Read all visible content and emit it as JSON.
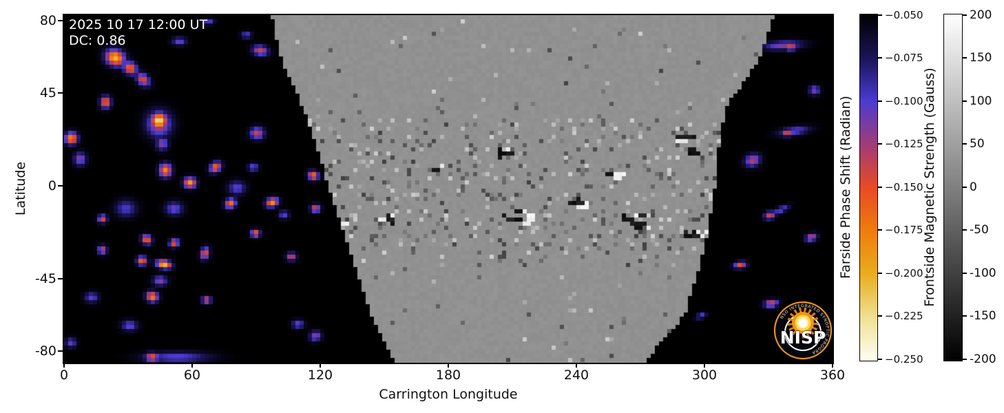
{
  "overlay": {
    "timestamp": "2025 10 17 12:00 UT",
    "dc_label": "DC: 0.86"
  },
  "axes": {
    "xlabel": "Carrington Longitude",
    "ylabel": "Latitude",
    "x_ticks": [
      0,
      60,
      120,
      180,
      240,
      300,
      360
    ],
    "y_ticks": [
      80,
      45,
      0,
      -45,
      -80
    ],
    "x_range": [
      0,
      360
    ],
    "y_range": [
      -84,
      84
    ]
  },
  "colorbars": [
    {
      "label": "Farside Phase Shift (Radian)",
      "tick_labels": [
        "−0.050",
        "−0.075",
        "−0.100",
        "−0.125",
        "−0.150",
        "−0.175",
        "−0.200",
        "−0.225",
        "−0.250"
      ],
      "value_range": [
        -0.05,
        -0.25
      ]
    },
    {
      "label": "Frontside Magnetic Strength (Gauss)",
      "tick_labels": [
        "200",
        "150",
        "100",
        "50",
        "0",
        "-50",
        "-100",
        "-150",
        "-200"
      ],
      "value_range": [
        200,
        -200
      ],
      "top_color": "#ffffff",
      "bottom_color": "#000000"
    }
  ],
  "logo": {
    "name": "NISP",
    "ring_text": "NSO INTEGRATED SYNOPTIC PROGRAM",
    "ring_color": "#e8931d",
    "text_color": "#ffffff"
  },
  "chart_data": {
    "type": "heatmap",
    "title": "2025 10 17 12:00 UT",
    "duty_cycle": 0.86,
    "xlabel": "Carrington Longitude",
    "ylabel": "Latitude",
    "xlim": [
      0,
      360
    ],
    "ylim": [
      -84,
      84
    ],
    "farside_phase_shift_range": [
      -0.25,
      -0.05
    ],
    "frontside_gauss_range": [
      -200,
      200
    ],
    "background": "#000000",
    "frontside_gray": "#919191",
    "colormap_stops": [
      [
        0,
        "#000001"
      ],
      [
        0.125,
        "#1a1456"
      ],
      [
        0.25,
        "#4a3bd0"
      ],
      [
        0.375,
        "#a03c78"
      ],
      [
        0.5,
        "#e84a24"
      ],
      [
        0.625,
        "#f07c0c"
      ],
      [
        0.75,
        "#e9ad1e"
      ],
      [
        0.875,
        "#efe092"
      ],
      [
        1,
        "#fffef4"
      ]
    ],
    "frontside_boundary": {
      "lat": [
        84,
        60,
        38,
        20,
        0,
        -31,
        -62,
        -84
      ],
      "lon_left": [
        96,
        101,
        111,
        117,
        123,
        133,
        143,
        153
      ],
      "lon_right": [
        332,
        324,
        309,
        306,
        304,
        299,
        290,
        272
      ]
    },
    "farside_blobs": [
      [
        23,
        63,
        5.5,
        4.5,
        20,
        0.78
      ],
      [
        30,
        58,
        4,
        3.5,
        35,
        0.6
      ],
      [
        36,
        52.5,
        4.5,
        3.2,
        45,
        0.5
      ],
      [
        53,
        71,
        4,
        2.4,
        0,
        0.3
      ],
      [
        91,
        66.5,
        4.5,
        3,
        10,
        0.45
      ],
      [
        117,
        78,
        4,
        2,
        -30,
        0.35
      ],
      [
        84.5,
        74,
        3,
        2,
        0,
        0.28
      ],
      [
        66.8,
        80.5,
        3,
        1.8,
        0,
        0.28
      ],
      [
        18.5,
        41.5,
        3,
        3.5,
        0,
        0.6
      ],
      [
        43.5,
        32.5,
        4.5,
        4.5,
        0,
        0.9
      ],
      [
        43.5,
        31,
        7,
        7.5,
        0,
        0.45
      ],
      [
        45,
        21.5,
        3.5,
        4,
        0,
        0.35
      ],
      [
        89.5,
        26.5,
        4,
        3.5,
        0,
        0.45
      ],
      [
        87.7,
        10,
        3,
        2.5,
        0,
        0.3
      ],
      [
        2.5,
        24,
        3.5,
        3.5,
        0,
        0.68
      ],
      [
        6.5,
        14,
        3.5,
        4,
        0,
        0.35
      ],
      [
        46.5,
        8.5,
        3.5,
        4,
        0,
        0.66
      ],
      [
        58,
        2.5,
        3.5,
        3,
        0,
        0.72
      ],
      [
        70,
        10,
        3.5,
        2.8,
        -40,
        0.6
      ],
      [
        77,
        -7.5,
        3.2,
        2.8,
        -30,
        0.62
      ],
      [
        96.5,
        -7,
        3.5,
        2.6,
        -20,
        0.7
      ],
      [
        115.8,
        6,
        3,
        2.6,
        20,
        0.62
      ],
      [
        116.8,
        -10,
        2.8,
        2.4,
        0,
        0.5
      ],
      [
        17,
        -15,
        2.6,
        2.4,
        0,
        0.5
      ],
      [
        17,
        -30,
        2.6,
        2.6,
        0,
        0.45
      ],
      [
        28,
        -10,
        6,
        5,
        0,
        0.25
      ],
      [
        50.6,
        -10,
        5,
        4,
        0,
        0.3
      ],
      [
        80,
        0,
        5,
        4,
        0,
        0.28
      ],
      [
        37.7,
        -25,
        3,
        2.6,
        30,
        0.6
      ],
      [
        50.6,
        -26.7,
        2.8,
        2.4,
        -20,
        0.55
      ],
      [
        45.8,
        -37,
        4.2,
        2.4,
        10,
        0.82
      ],
      [
        35.5,
        -35.3,
        2.8,
        2.6,
        0,
        0.6
      ],
      [
        44,
        -45,
        4,
        3,
        0,
        0.35
      ],
      [
        40.3,
        -52.7,
        3.4,
        3,
        20,
        0.66
      ],
      [
        65,
        -31.7,
        2.4,
        3.6,
        15,
        0.55
      ],
      [
        88.7,
        -22,
        2.6,
        2.2,
        0,
        0.6
      ],
      [
        105.5,
        -33.3,
        2.8,
        2.4,
        0,
        0.45
      ],
      [
        102,
        -13,
        3,
        2.5,
        0,
        0.28
      ],
      [
        65.8,
        -54.3,
        2.6,
        2.2,
        0,
        0.5
      ],
      [
        12,
        -53,
        4,
        3,
        0,
        0.28
      ],
      [
        29.7,
        -66.7,
        4.5,
        3,
        0,
        0.3
      ],
      [
        116.8,
        -71.7,
        3.4,
        3,
        -20,
        0.35
      ],
      [
        108.7,
        -66,
        3.5,
        2.5,
        0,
        0.3
      ],
      [
        40.3,
        -82,
        4,
        2.6,
        0,
        0.55
      ],
      [
        52,
        -82,
        18,
        3,
        0,
        0.28
      ],
      [
        2.3,
        -75,
        3,
        2.8,
        0,
        0.3
      ],
      [
        339.4,
        68.3,
        3.4,
        2.2,
        0,
        0.5
      ],
      [
        336,
        69,
        11,
        2.6,
        -4,
        0.33
      ],
      [
        350.6,
        47.3,
        3.2,
        2.8,
        0,
        0.33
      ],
      [
        337.7,
        26.7,
        3,
        2.2,
        0,
        0.5
      ],
      [
        341,
        27.5,
        9,
        2.4,
        -8,
        0.3
      ],
      [
        321.6,
        13.3,
        4.5,
        3.6,
        -20,
        0.42
      ],
      [
        329.7,
        -13.3,
        3.2,
        2.4,
        -15,
        0.46
      ],
      [
        335,
        -10.5,
        5,
        1.8,
        -25,
        0.3
      ],
      [
        349,
        -24,
        3.4,
        2.2,
        -15,
        0.45
      ],
      [
        315.8,
        -37.3,
        3.6,
        2,
        -10,
        0.52
      ],
      [
        330.3,
        -56,
        4,
        2.2,
        -8,
        0.5
      ],
      [
        297.4,
        -62,
        3,
        1.6,
        -20,
        0.3
      ],
      [
        341,
        -77,
        4.5,
        2.4,
        0,
        0.28
      ],
      [
        355.5,
        -66.7,
        3,
        2.2,
        0,
        0.3
      ]
    ],
    "farside_dark_spots": [
      [
        43.2,
        -32.3,
        2.2,
        2
      ]
    ],
    "active_regions": [
      [
        174,
        9.5,
        1.2,
        3,
        1,
        1
      ],
      [
        257.5,
        6.5,
        2.6,
        8,
        7,
        1
      ],
      [
        288.5,
        24.5,
        3.2,
        6,
        8,
        -1
      ],
      [
        211,
        -14,
        5,
        6,
        9,
        1
      ],
      [
        151,
        -15,
        3,
        6,
        5,
        -1
      ],
      [
        128.5,
        -17.5,
        1.8,
        2,
        2,
        1
      ],
      [
        268,
        -16,
        7,
        5,
        12,
        1
      ],
      [
        296,
        -22,
        4,
        4,
        6,
        1
      ],
      [
        241,
        -8,
        4,
        3,
        5,
        1
      ],
      [
        207,
        16,
        5,
        2,
        5,
        1
      ],
      [
        293,
        18,
        3,
        2,
        4,
        1
      ]
    ],
    "pixel_deg": 2
  }
}
